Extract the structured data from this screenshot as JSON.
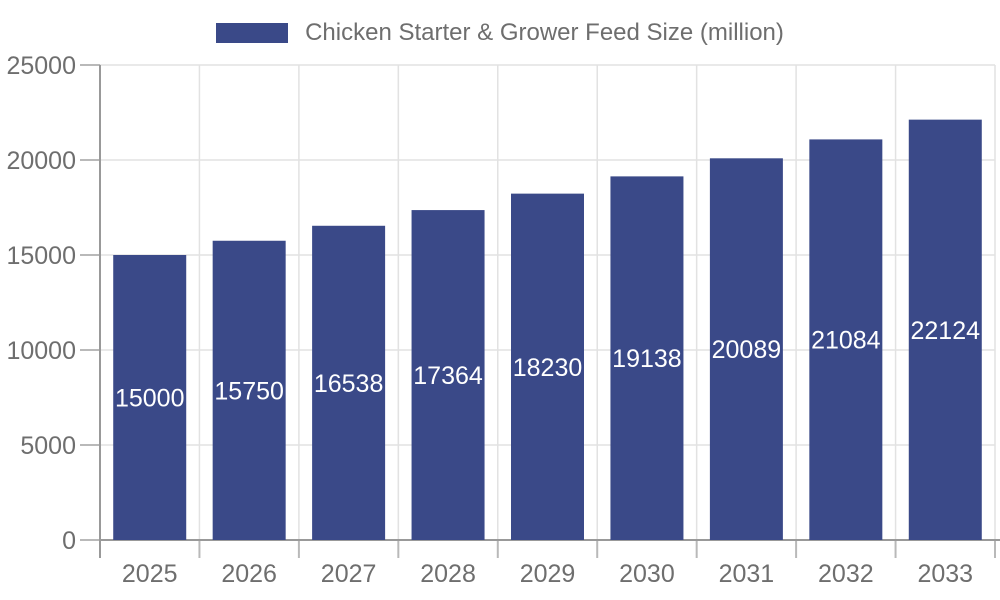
{
  "chart_data": {
    "type": "bar",
    "title": "",
    "legend": {
      "position": "top",
      "entries": [
        "Chicken Starter & Grower Feed Size (million)"
      ]
    },
    "categories": [
      "2025",
      "2026",
      "2027",
      "2028",
      "2029",
      "2030",
      "2031",
      "2032",
      "2033"
    ],
    "series": [
      {
        "name": "Chicken Starter & Grower Feed Size (million)",
        "values": [
          15000,
          15750,
          16538,
          17364,
          18230,
          19138,
          20089,
          21084,
          22124
        ]
      }
    ],
    "xlabel": "",
    "ylabel": "",
    "ylim": [
      0,
      25000
    ],
    "yticks": [
      0,
      5000,
      10000,
      15000,
      20000,
      25000
    ],
    "grid": true,
    "bar_value_labels": true,
    "colors": {
      "bar": "#3a4988",
      "bar_value_label": "#ffffff",
      "axis_text": "#6e6e6e",
      "legend_text": "#6e6e6e",
      "grid_line": "#e2e2e2",
      "axis_line": "#999999",
      "tick_line": "#b9b9b9",
      "background": "#ffffff"
    }
  }
}
